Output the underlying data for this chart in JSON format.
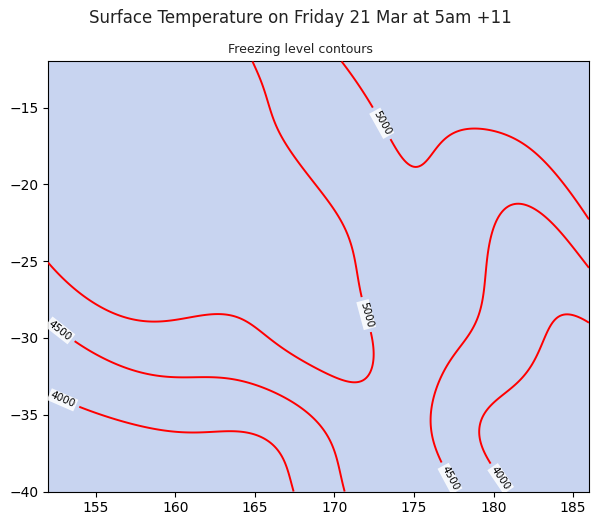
{
  "title": "Surface Temperature on Friday 21 Mar at 5am +11",
  "subtitle": "Freezing level contours",
  "title_fontsize": 12,
  "subtitle_fontsize": 9,
  "title_color": "#222222",
  "background_color": "#ffffff",
  "ocean_color": "#c8d4f0",
  "figsize": [
    6.01,
    5.12
  ],
  "dpi": 100,
  "map_extent": [
    152,
    186,
    -40,
    -12
  ],
  "contour_color": "red",
  "contour_linewidth": 1.4,
  "contour_label_fontsize": 7.5,
  "border_color": "#888888",
  "border_linewidth": 0.8,
  "contour_levels": [
    4000,
    4500,
    5000
  ],
  "terrain_colors": [
    [
      0.0,
      "#afc090"
    ],
    [
      0.05,
      "#c8b46e"
    ],
    [
      0.15,
      "#d4a832"
    ],
    [
      0.3,
      "#cc8010"
    ],
    [
      0.5,
      "#c06000"
    ],
    [
      0.7,
      "#a03800"
    ],
    [
      0.85,
      "#8b2800"
    ],
    [
      1.0,
      "#7a2000"
    ]
  ]
}
